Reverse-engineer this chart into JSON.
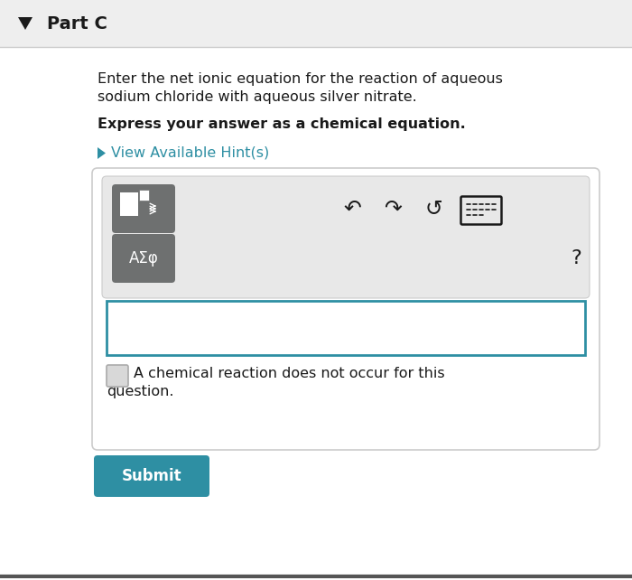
{
  "bg_color": "#f0f0f0",
  "white": "#ffffff",
  "part_c_text": "Part C",
  "body_text_line1": "Enter the net ionic equation for the reaction of aqueous",
  "body_text_line2": "sodium chloride with aqueous silver nitrate.",
  "bold_text": "Express your answer as a chemical equation.",
  "hint_text": "View Available Hint(s)",
  "hint_color": "#2e8fa3",
  "checkbox_text_line1": "A chemical reaction does not occur for this",
  "checkbox_text_line2": "question.",
  "submit_text": "Submit",
  "submit_bg": "#2e8fa3",
  "submit_text_color": "#ffffff",
  "toolbar_bg": "#e8e8e8",
  "btn_dark_bg": "#6e7070",
  "input_border": "#2e8fa3",
  "separator_color": "#cccccc",
  "panel_bg": "#ebebeb",
  "dark_text": "#1a1a1a",
  "mid_text": "#333333",
  "header_bg": "#eeeeee"
}
